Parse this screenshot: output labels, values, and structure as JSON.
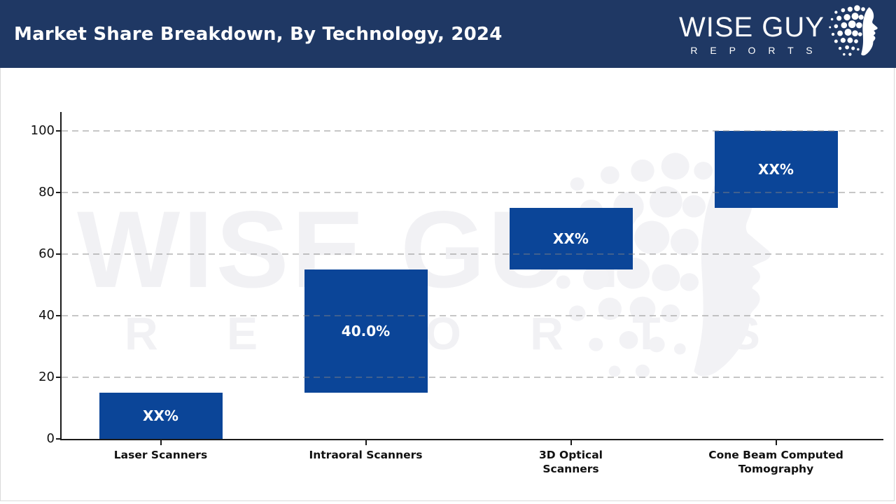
{
  "header": {
    "title": "Market Share Breakdown, By Technology, 2024",
    "brand_name": "WISE GUY",
    "brand_sub": "R E P O R T S",
    "bg_color": "#1f3864"
  },
  "watermark": {
    "line1": "WISE GUY",
    "line2": "R E P O R T S"
  },
  "chart_data": {
    "type": "bar",
    "variant": "floating-range",
    "title": "Market Share Breakdown, By Technology, 2024",
    "categories": [
      "Laser Scanners",
      "Intraoral Scanners",
      "3D Optical Scanners",
      "Cone Beam Computed Tomography"
    ],
    "bars": [
      {
        "category_lines": [
          "Laser Scanners"
        ],
        "range": [
          0,
          15
        ],
        "label": "XX%"
      },
      {
        "category_lines": [
          "Intraoral Scanners"
        ],
        "range": [
          15,
          55
        ],
        "label": "40.0%"
      },
      {
        "category_lines": [
          "3D Optical",
          "Scanners"
        ],
        "range": [
          55,
          75
        ],
        "label": "XX%"
      },
      {
        "category_lines": [
          "Cone Beam Computed",
          "Tomography"
        ],
        "range": [
          75,
          100
        ],
        "label": "XX%"
      }
    ],
    "yticks": [
      0,
      20,
      40,
      60,
      80,
      100
    ],
    "ylim": [
      0,
      106
    ],
    "xlabel": "",
    "ylabel": "",
    "bar_color": "#0b4598",
    "bar_label_color": "#ffffff",
    "grid": {
      "axis": "y",
      "style": "dashed",
      "color": "#cfcfcf",
      "above_bars": true
    },
    "legend": null
  }
}
